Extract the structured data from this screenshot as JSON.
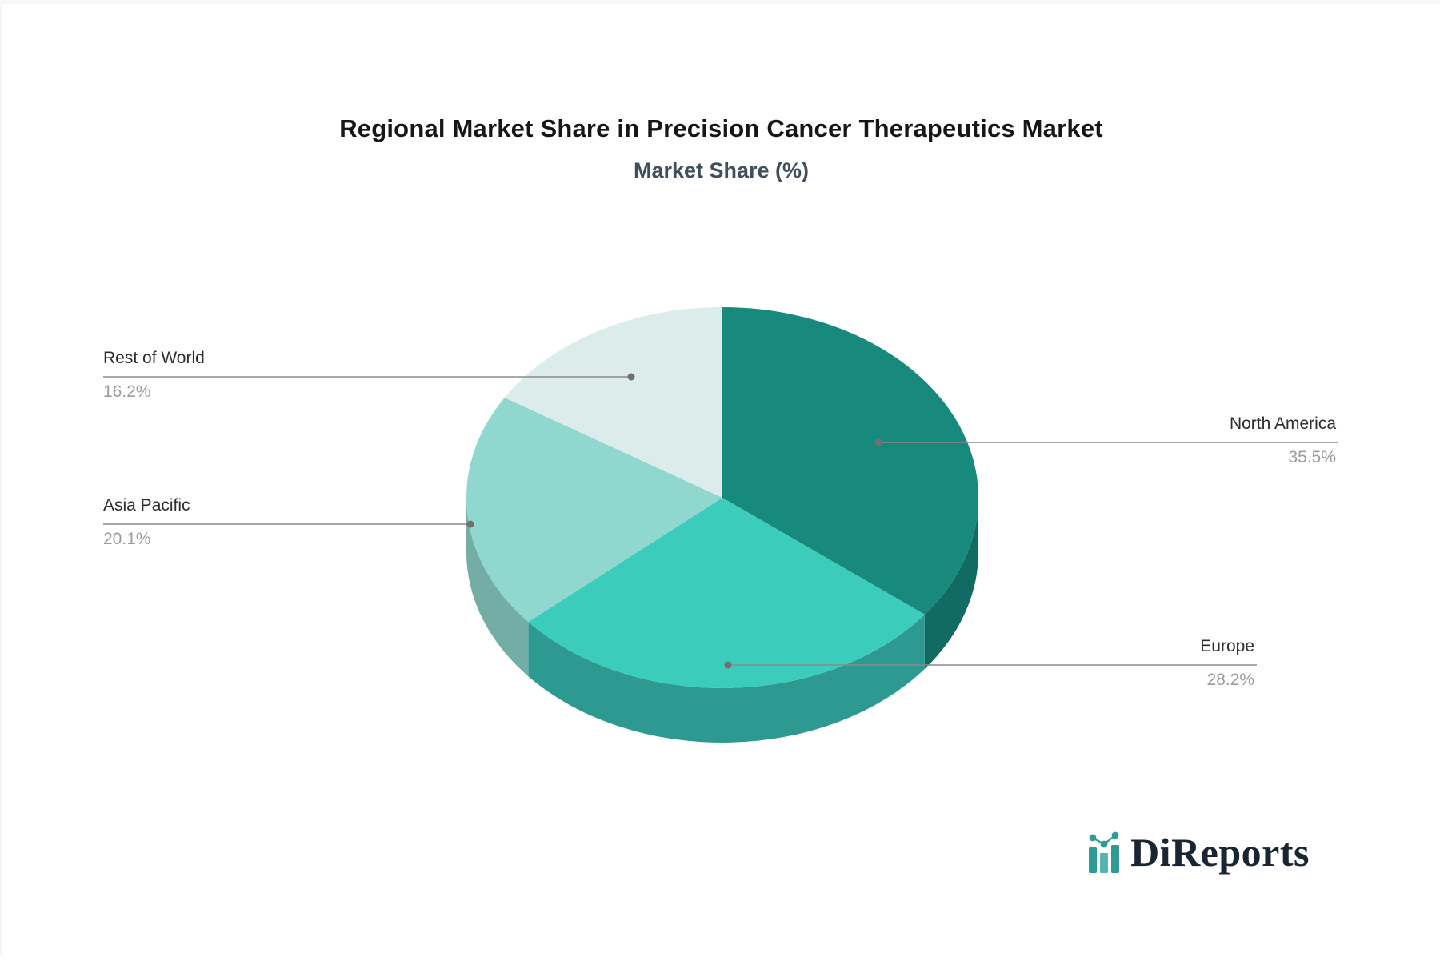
{
  "chart_data": {
    "type": "pie",
    "title": "Regional Market Share in Precision Cancer Therapeutics Market",
    "subtitle": "Market Share (%)",
    "unit": "%",
    "label_position": "outside",
    "legend": "none",
    "effect": "3d",
    "slices": [
      {
        "label": "North America",
        "value": 35.5,
        "percent_text": "35.5%",
        "color": "#17897d",
        "side_color": "#126b62"
      },
      {
        "label": "Europe",
        "value": 28.2,
        "percent_text": "28.2%",
        "color": "#3bccbc",
        "side_color": "#2e9990"
      },
      {
        "label": "Asia Pacific",
        "value": 20.1,
        "percent_text": "20.1%",
        "color": "#8fd7cf",
        "side_color": "#74ada6"
      },
      {
        "label": "Rest of World",
        "value": 16.2,
        "percent_text": "16.2%",
        "color": "#dcecea",
        "side_color": "#b9cfcc"
      }
    ],
    "connector_color": "#8a8a8a",
    "label_name_color": "#2d2d2d",
    "label_percent_color": "#9b9b9b"
  },
  "branding": {
    "logo_text": "DiReports",
    "logo_icon": "bar-line-chart-icon",
    "logo_accent_color": "#2e9c93",
    "logo_text_color": "#1a2533"
  }
}
